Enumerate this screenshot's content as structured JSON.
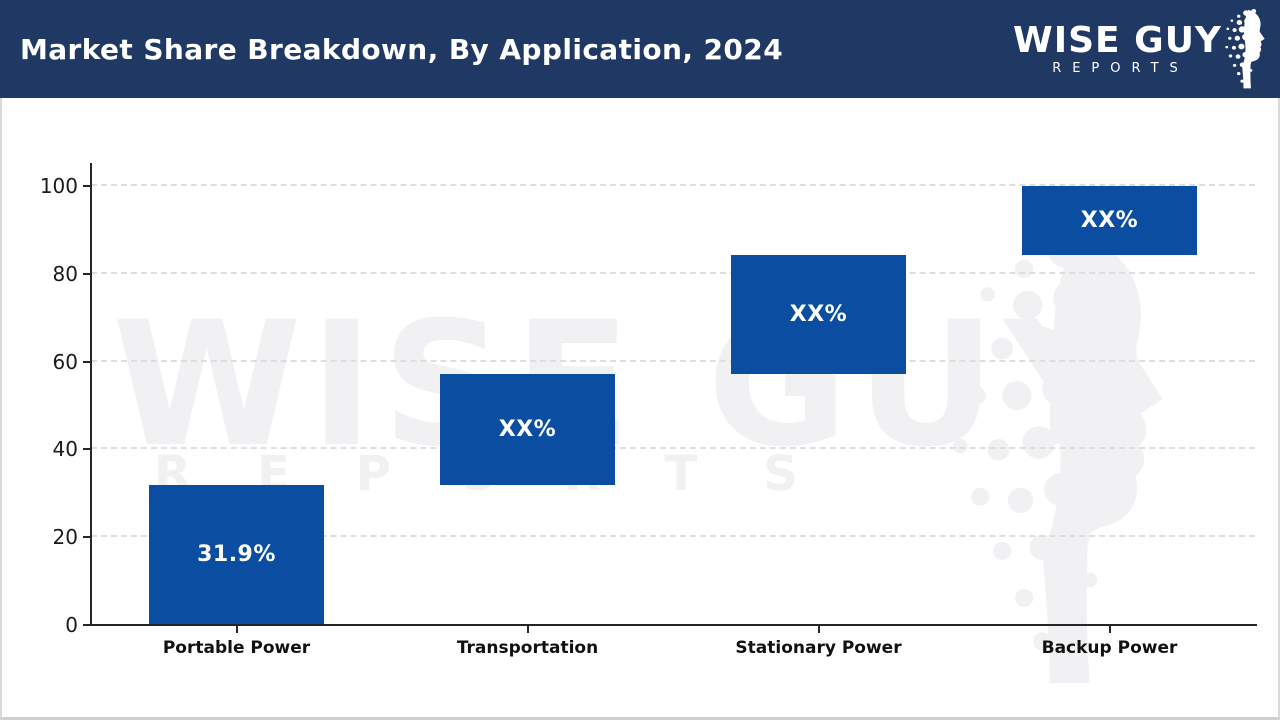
{
  "header": {
    "title": "Market Share Breakdown, By Application, 2024",
    "logo": {
      "wordmark": "WISE GUY",
      "subtext": "REPORTS"
    }
  },
  "watermark": {
    "wordmark": "WISE GUY",
    "subtext": "REPORTS"
  },
  "chart_data": {
    "type": "waterfall",
    "title": "Market Share Breakdown, By Application, 2024",
    "categories": [
      "Portable Power",
      "Transportation",
      "Stationary Power",
      "Backup Power"
    ],
    "segments": [
      {
        "category": "Portable Power",
        "start": 0,
        "end": 31.9,
        "label": "31.9%"
      },
      {
        "category": "Transportation",
        "start": 31.9,
        "end": 57.2,
        "label": "XX%"
      },
      {
        "category": "Stationary Power",
        "start": 57.2,
        "end": 84.3,
        "label": "XX%"
      },
      {
        "category": "Backup Power",
        "start": 84.3,
        "end": 100,
        "label": "XX%"
      }
    ],
    "ylim": [
      0,
      100
    ],
    "yticks": [
      0,
      20,
      40,
      60,
      80,
      100
    ],
    "xlabel": "",
    "ylabel": "",
    "legend": "none",
    "grid": "horizontal-dashed",
    "bar_color": "#0b4da1",
    "bar_label_color": "#ffffff",
    "axis_color": "#262626",
    "grid_color": "#dedede"
  },
  "colors": {
    "header_bg": "#203864",
    "page_bg": "#ffffff",
    "watermark": "#f1f1f3",
    "border": "#d9d9d9",
    "text": "#1a1a1a"
  }
}
